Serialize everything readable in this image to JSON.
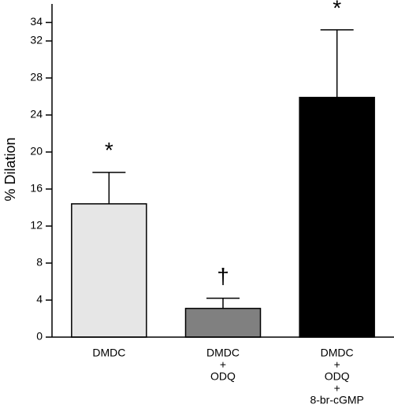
{
  "chart_data": {
    "type": "bar",
    "ylabel": "% Dilation",
    "categories": [
      [
        "DMDC"
      ],
      [
        "DMDC",
        "+",
        "ODQ"
      ],
      [
        "DMDC",
        "+",
        "ODQ",
        "+",
        "8-br-cGMP"
      ]
    ],
    "values": [
      14.4,
      3.1,
      25.9
    ],
    "errors": [
      3.4,
      1.1,
      7.3
    ],
    "markers": [
      "*",
      "†",
      "*"
    ],
    "colors": [
      "#e6e6e6",
      "#808080",
      "#000000"
    ],
    "ylim": [
      0,
      36
    ],
    "yticks": [
      0,
      4,
      8,
      12,
      16,
      20,
      24,
      28,
      32,
      34
    ]
  }
}
